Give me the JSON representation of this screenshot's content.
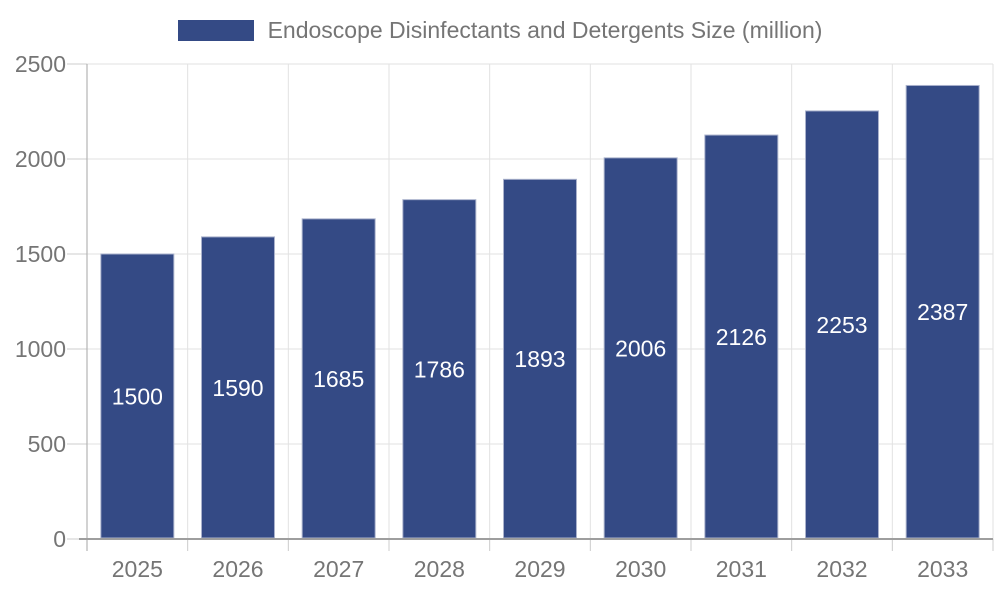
{
  "legend": {
    "swatch_color": "#344A85"
  },
  "chart_data": {
    "type": "bar",
    "title": "Endoscope Disinfectants and Detergents Size (million)",
    "categories": [
      "2025",
      "2026",
      "2027",
      "2028",
      "2029",
      "2030",
      "2031",
      "2032",
      "2033"
    ],
    "values": [
      1500,
      1590,
      1685,
      1786,
      1893,
      2006,
      2126,
      2253,
      2387
    ],
    "xlabel": "",
    "ylabel": "",
    "ylim": [
      0,
      2500
    ],
    "yticks": [
      0,
      500,
      1000,
      1500,
      2000,
      2500
    ],
    "grid": true,
    "legend_position": "top",
    "colors": {
      "bar": "#344A85",
      "bar_edge": "#aab2cc",
      "value_label": "#ffffff",
      "tick_label": "#757575",
      "grid_line": "#e2e2e2",
      "y_axis_line": "#b3b3b3",
      "x_axis_line": "#9e9e9e",
      "tick_mark": "#cccccc"
    }
  }
}
